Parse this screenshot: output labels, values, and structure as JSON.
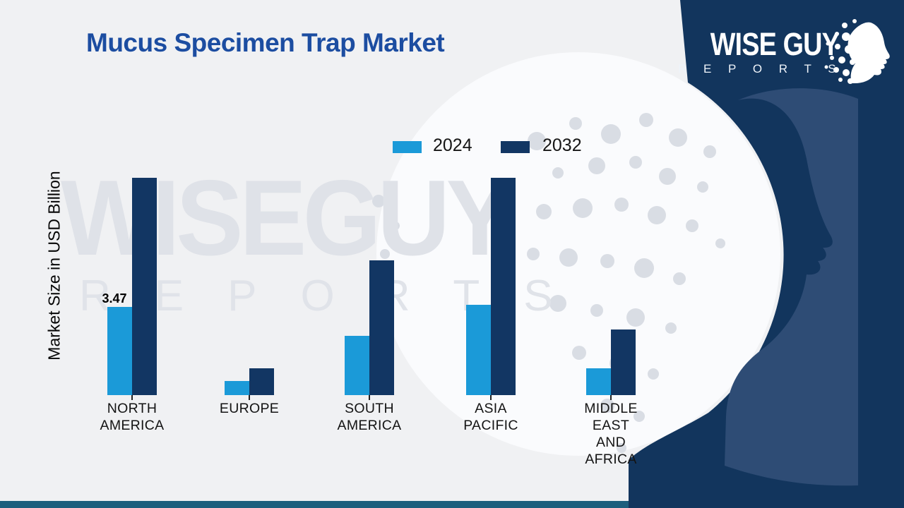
{
  "page": {
    "title": "Mucus Specimen Trap Market"
  },
  "logo": {
    "line1": "WISE GUY",
    "line2": "R E P O R T S"
  },
  "watermark": {
    "line1": "WISEGUY",
    "line2": "REPORTS"
  },
  "chart_data": {
    "type": "bar",
    "title": "Mucus Specimen Trap Market",
    "xlabel": "",
    "ylabel": "Market Size in USD Billion",
    "categories": [
      "NORTH AMERICA",
      "EUROPE",
      "SOUTH AMERICA",
      "ASIA PACIFIC",
      "MIDDLE EAST AND AFRICA"
    ],
    "category_lines": [
      [
        "NORTH",
        "AMERICA"
      ],
      [
        "EUROPE"
      ],
      [
        "SOUTH",
        "AMERICA"
      ],
      [
        "ASIA",
        "PACIFIC"
      ],
      [
        "MIDDLE",
        "EAST",
        "AND",
        "AFRICA"
      ]
    ],
    "series": [
      {
        "name": "2024",
        "color": "#1b9ad8",
        "values": [
          3.47,
          0.56,
          2.33,
          3.55,
          1.06
        ]
      },
      {
        "name": "2032",
        "color": "#123663",
        "values": [
          8.55,
          1.06,
          5.3,
          8.55,
          2.58
        ]
      }
    ],
    "data_labels": [
      {
        "series": "2024",
        "category": "NORTH AMERICA",
        "text": "3.47"
      }
    ],
    "legend_position": "top",
    "grid": false,
    "axis_lines": false,
    "ylim": [
      0,
      9.5
    ]
  },
  "colors": {
    "title_blue": "#1c4da1",
    "bar_2024": "#1b9ad8",
    "bar_2032": "#123663",
    "banner_navy": "#12355d",
    "silhouette_navy": "#2e4c75",
    "bottom_strip_teal": "#1c5e7d",
    "watermark_gray": "#dfe2e8",
    "background": "#f0f1f3"
  }
}
